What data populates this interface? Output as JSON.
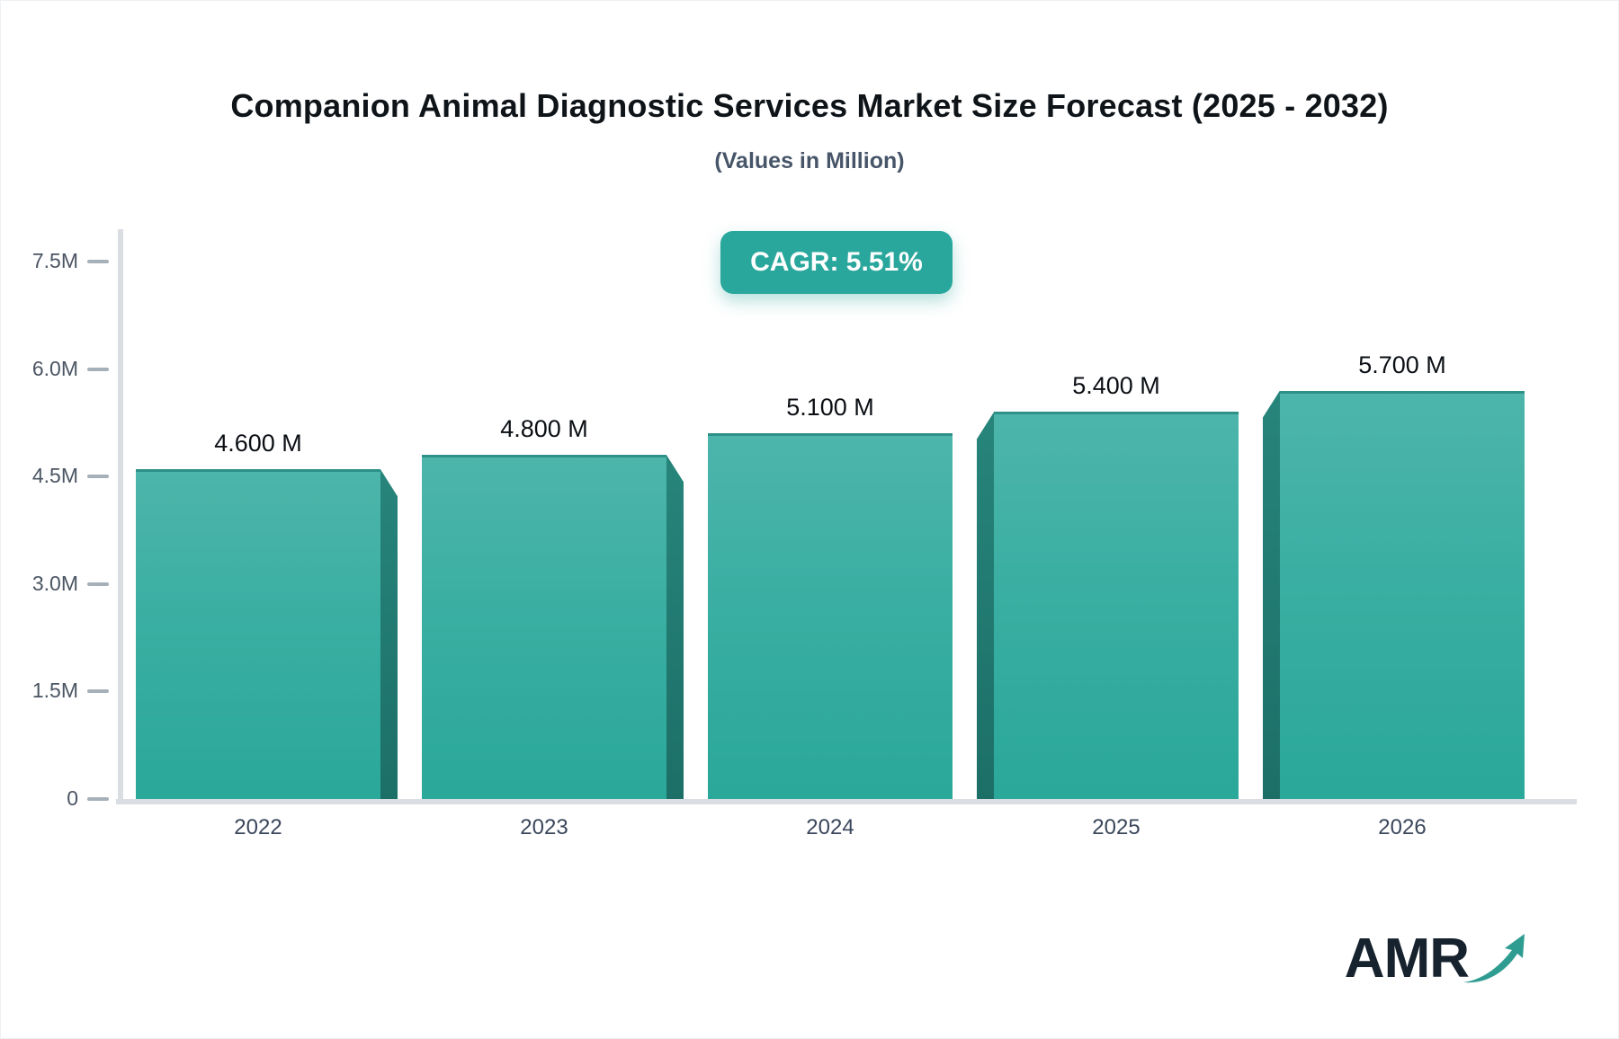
{
  "header": {
    "title": "Companion Animal Diagnostic Services Market Size Forecast (2025 - 2032)",
    "subtitle": "(Values in Million)",
    "cagr_badge": "CAGR: 5.51%"
  },
  "logo": {
    "text": "AMR"
  },
  "chart_data": {
    "type": "bar",
    "title": "Companion Animal Diagnostic Services Market Size Forecast (2025 - 2032)",
    "subtitle": "(Values in Million)",
    "categories": [
      "2022",
      "2023",
      "2024",
      "2025",
      "2026"
    ],
    "values": [
      4.6,
      4.8,
      5.1,
      5.4,
      5.7
    ],
    "bar_labels": [
      "4.600 M",
      "4.800 M",
      "5.100 M",
      "5.400 M",
      "5.700 M"
    ],
    "xlabel": "",
    "ylabel": "",
    "ylim": [
      0,
      7.5
    ],
    "yticks": [
      0,
      1.5,
      3.0,
      4.5,
      6.0,
      7.5
    ],
    "ytick_labels": [
      "0",
      "1.5M",
      "3.0M",
      "4.5M",
      "6.0M",
      "7.5M"
    ],
    "grid": false,
    "legend": false,
    "cagr": "5.51%",
    "colors": {
      "bar_top": "#4db5ab",
      "bar_bottom": "#2aa89a",
      "bar_depth": "#1f7a71",
      "badge": "#2aa79c",
      "axis": "#dadee2",
      "logo_navy": "#16222e",
      "logo_teal": "#2f9c92"
    }
  }
}
